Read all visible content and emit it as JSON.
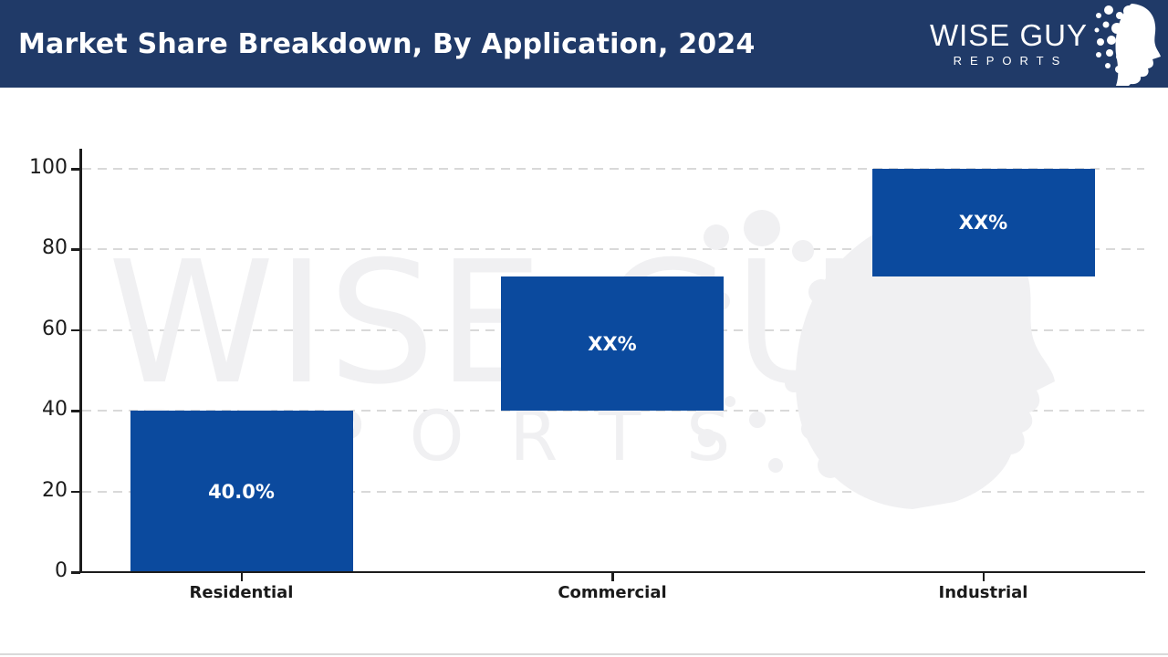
{
  "header": {
    "title": "Market Share Breakdown, By Application, 2024",
    "logo": {
      "line1": "WISE GUY",
      "line2": "REPORTS"
    }
  },
  "watermark": {
    "line1": "WISE GUY",
    "line2": "REPORTS"
  },
  "colors": {
    "header_bg": "#203a68",
    "bar": "#0b4a9e",
    "bar_label": "#ffffff",
    "axis": "#1c1c1c",
    "grid": "#d9d9d9",
    "watermark": "#f0f0f2"
  },
  "chart_data": {
    "type": "bar",
    "subtype": "stacked-waterfall",
    "title": "Market Share Breakdown, By Application, 2024",
    "categories": [
      "Residential",
      "Commercial",
      "Industrial"
    ],
    "segments": [
      {
        "category": "Residential",
        "start": 0,
        "end": 40,
        "label": "40.0%"
      },
      {
        "category": "Commercial",
        "start": 40,
        "end": 73.2,
        "label": "XX%"
      },
      {
        "category": "Industrial",
        "start": 73.2,
        "end": 100,
        "label": "XX%"
      }
    ],
    "y_ticks": [
      0,
      20,
      40,
      60,
      80,
      100
    ],
    "ylim": [
      0,
      100
    ],
    "xlabel": "",
    "ylabel": "",
    "grid": "horizontal-dashed",
    "legend": "none"
  }
}
